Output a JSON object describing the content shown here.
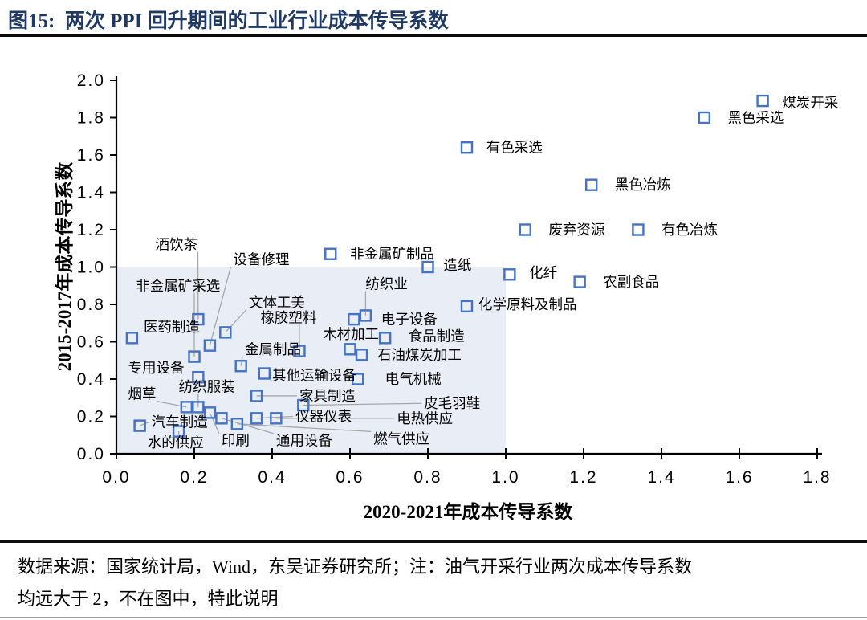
{
  "title": "图15:  两次 PPI 回升期间的工业行业成本传导系数",
  "footer": {
    "line1": "数据来源：国家统计局，Wind，东吴证券研究所；注：油气开采行业两次成本传导系数",
    "line2": "均远大于 2，不在图中，特此说明"
  },
  "colors": {
    "marker_blue": "#4472C4",
    "title_navy": "#1F3864",
    "shade_blue": "#E8EDF6",
    "leader_gray": "#A8A8A8",
    "axis_black": "#000000"
  },
  "chart_data": {
    "type": "scatter",
    "title": "",
    "xlabel": "2020-2021年成本传导系数",
    "ylabel": "2015-2017年成本传导系数",
    "xlim": [
      0.0,
      1.8
    ],
    "ylim": [
      0.0,
      2.0
    ],
    "xticks": [
      "0.0",
      "0.2",
      "0.4",
      "0.6",
      "0.8",
      "1.0",
      "1.2",
      "1.4",
      "1.6",
      "1.8"
    ],
    "yticks": [
      "0.0",
      "0.2",
      "0.4",
      "0.6",
      "0.8",
      "1.0",
      "1.2",
      "1.4",
      "1.6",
      "1.8",
      "2.0"
    ],
    "grid": false,
    "marker": "hollow-square",
    "shaded_region": {
      "x": [
        0.0,
        1.0
      ],
      "y": [
        0.0,
        1.0
      ]
    },
    "note": "油气开采行业两次成本传导系数均远大于 2，不在图中",
    "points": [
      {
        "label": "煤炭开采",
        "x": 1.66,
        "y": 1.89,
        "lx": 1.71,
        "ly": 1.88,
        "leader": false
      },
      {
        "label": "黑色采选",
        "x": 1.51,
        "y": 1.8,
        "lx": 1.57,
        "ly": 1.8,
        "leader": false
      },
      {
        "label": "有色采选",
        "x": 0.9,
        "y": 1.64,
        "lx": 0.95,
        "ly": 1.64,
        "leader": false
      },
      {
        "label": "黑色冶炼",
        "x": 1.22,
        "y": 1.44,
        "lx": 1.28,
        "ly": 1.44,
        "leader": false
      },
      {
        "label": "废弃资源",
        "x": 1.05,
        "y": 1.2,
        "lx": 1.11,
        "ly": 1.2,
        "leader": false
      },
      {
        "label": "有色冶炼",
        "x": 1.34,
        "y": 1.2,
        "lx": 1.4,
        "ly": 1.2,
        "leader": false
      },
      {
        "label": "化纤",
        "x": 1.01,
        "y": 0.96,
        "lx": 1.06,
        "ly": 0.97,
        "leader": false
      },
      {
        "label": "农副食品",
        "x": 1.19,
        "y": 0.92,
        "lx": 1.25,
        "ly": 0.92,
        "leader": false
      },
      {
        "label": "非金属矿制品",
        "x": 0.55,
        "y": 1.07,
        "lx": 0.6,
        "ly": 1.07,
        "leader": false
      },
      {
        "label": "造纸",
        "x": 0.8,
        "y": 1.0,
        "lx": 0.84,
        "ly": 1.01,
        "leader": false
      },
      {
        "label": "化学原料及制品",
        "x": 0.9,
        "y": 0.79,
        "lx": 0.93,
        "ly": 0.8,
        "leader": false
      },
      {
        "label": "纺织业",
        "x": 0.64,
        "y": 0.74,
        "lx": 0.64,
        "ly": 0.91,
        "leader": true
      },
      {
        "label": "电子设备",
        "x": 0.61,
        "y": 0.72,
        "lx": 0.68,
        "ly": 0.72,
        "leader": false
      },
      {
        "label": "食品制造",
        "x": 0.69,
        "y": 0.62,
        "lx": 0.75,
        "ly": 0.63,
        "leader": false
      },
      {
        "label": "木材加工",
        "x": 0.6,
        "y": 0.56,
        "lx": 0.53,
        "ly": 0.64,
        "leader": false
      },
      {
        "label": "石油煤炭加工",
        "x": 0.63,
        "y": 0.53,
        "lx": 0.67,
        "ly": 0.53,
        "leader": false
      },
      {
        "label": "电气机械",
        "x": 0.62,
        "y": 0.4,
        "lx": 0.69,
        "ly": 0.4,
        "leader": false
      },
      {
        "label": "其他运输设备",
        "x": 0.38,
        "y": 0.43,
        "lx": 0.4,
        "ly": 0.42,
        "leader": false
      },
      {
        "label": "金属制品",
        "x": 0.32,
        "y": 0.47,
        "lx": 0.33,
        "ly": 0.56,
        "leader": true
      },
      {
        "label": "橡胶塑料",
        "x": 0.47,
        "y": 0.55,
        "lx": 0.37,
        "ly": 0.73,
        "leader": true
      },
      {
        "label": "文体工美",
        "x": 0.28,
        "y": 0.65,
        "lx": 0.34,
        "ly": 0.81,
        "leader": true
      },
      {
        "label": "设备修理",
        "x": 0.24,
        "y": 0.58,
        "lx": 0.3,
        "ly": 1.04,
        "leader": true
      },
      {
        "label": "酒饮茶",
        "x": 0.21,
        "y": 0.72,
        "lx": 0.1,
        "ly": 1.12,
        "leader": true
      },
      {
        "label": "非金属矿采选",
        "x": 0.2,
        "y": 0.52,
        "lx": 0.05,
        "ly": 0.9,
        "leader": true
      },
      {
        "label": "医药制造",
        "x": 0.04,
        "y": 0.62,
        "lx": 0.07,
        "ly": 0.68,
        "leader": false
      },
      {
        "label": "专用设备",
        "x": 0.21,
        "y": 0.41,
        "lx": 0.03,
        "ly": 0.46,
        "leader": false
      },
      {
        "label": "烟草",
        "x": 0.18,
        "y": 0.25,
        "lx": 0.03,
        "ly": 0.32,
        "leader": true
      },
      {
        "label": "纺织服装",
        "x": 0.21,
        "y": 0.25,
        "lx": 0.16,
        "ly": 0.36,
        "leader": true
      },
      {
        "label": "汽车制造",
        "x": 0.06,
        "y": 0.15,
        "lx": 0.09,
        "ly": 0.17,
        "leader": true
      },
      {
        "label": "水的供应",
        "x": 0.16,
        "y": 0.12,
        "lx": 0.08,
        "ly": 0.06,
        "leader": true
      },
      {
        "label": "印刷",
        "x": 0.24,
        "y": 0.22,
        "lx": 0.27,
        "ly": 0.07,
        "leader": true
      },
      {
        "label": "通用设备",
        "x": 0.27,
        "y": 0.19,
        "lx": 0.41,
        "ly": 0.07,
        "leader": true
      },
      {
        "label": "燃气供应",
        "x": 0.31,
        "y": 0.16,
        "lx": 0.66,
        "ly": 0.08,
        "leader": true
      },
      {
        "label": "仪器仪表",
        "x": 0.36,
        "y": 0.19,
        "lx": 0.46,
        "ly": 0.2,
        "leader": true
      },
      {
        "label": "电热供应",
        "x": 0.41,
        "y": 0.19,
        "lx": 0.72,
        "ly": 0.19,
        "leader": true
      },
      {
        "label": "家具制造",
        "x": 0.36,
        "y": 0.31,
        "lx": 0.47,
        "ly": 0.31,
        "leader": true
      },
      {
        "label": "皮毛羽鞋",
        "x": 0.48,
        "y": 0.26,
        "lx": 0.79,
        "ly": 0.27,
        "leader": true
      }
    ]
  }
}
